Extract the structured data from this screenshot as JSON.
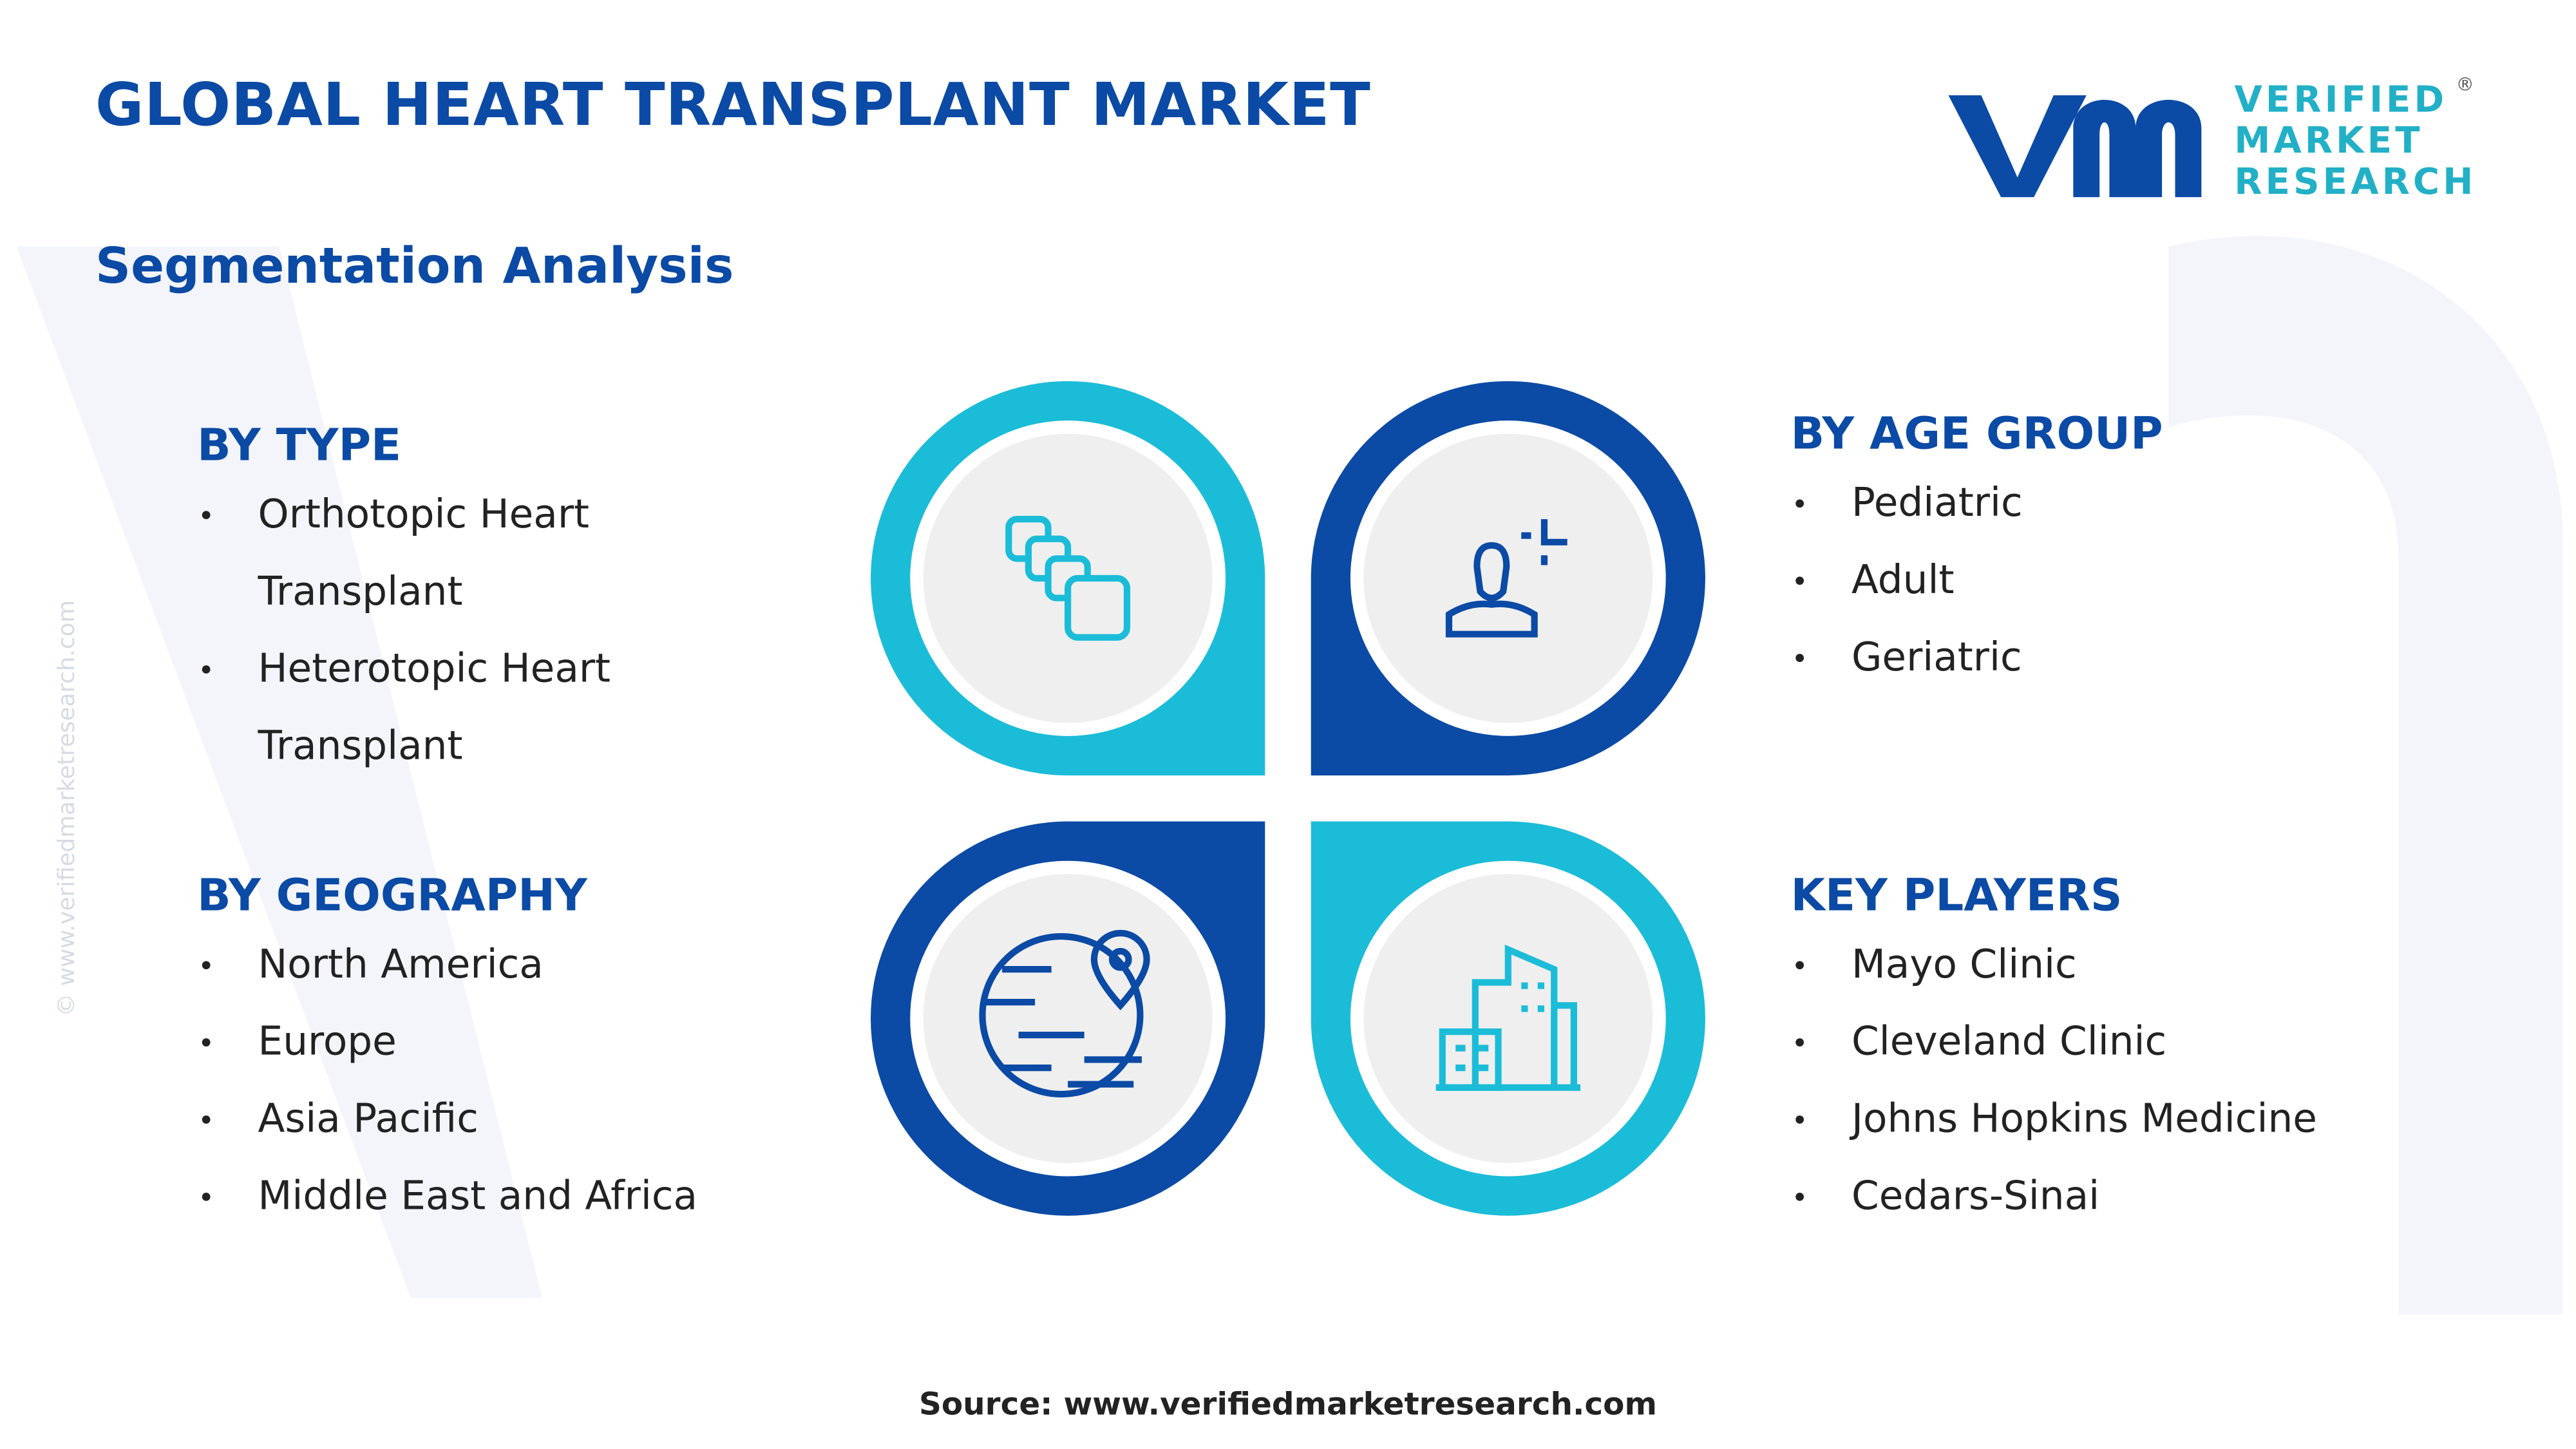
{
  "header": {
    "title": "GLOBAL HEART TRANSPLANT MARKET",
    "subtitle": "Segmentation Analysis"
  },
  "logo": {
    "lines": [
      "VERIFIED",
      "MARKET",
      "RESEARCH"
    ],
    "registered": "®"
  },
  "segments": [
    {
      "title": "BY TYPE",
      "items": [
        "Orthotopic Heart Transplant",
        "Heterotopic Heart Transplant"
      ]
    },
    {
      "title": "BY AGE GROUP",
      "items": [
        "Pediatric",
        "Adult",
        "Geriatric"
      ]
    },
    {
      "title": "BY GEOGRAPHY",
      "items": [
        "North America",
        "Europe",
        "Asia Pacific",
        "Middle East and Africa"
      ]
    },
    {
      "title": "KEY PLAYERS",
      "items": [
        "Mayo Clinic",
        "Cleveland Clinic",
        "Johns Hopkins Medicine",
        "Cedars-Sinai"
      ]
    }
  ],
  "source": "Source: www.verifiedmarketresearch.com",
  "watermark": "© www.verifiedmarketresearch.com"
}
